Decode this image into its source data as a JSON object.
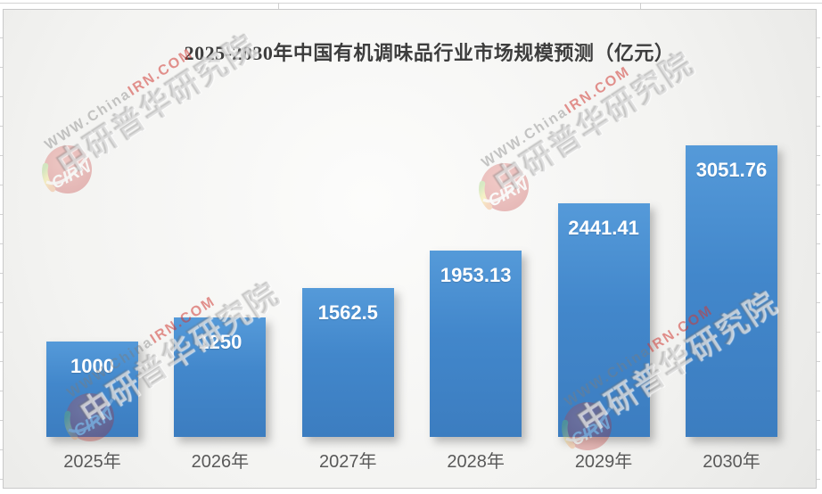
{
  "chart_data": {
    "type": "bar",
    "title": "2025-2030年中国有机调味品行业市场规模预测（亿元）",
    "unit": "亿元",
    "categories": [
      "2025年",
      "2026年",
      "2027年",
      "2028年",
      "2029年",
      "2030年"
    ],
    "values": [
      1000,
      1250,
      1562.5,
      1953.13,
      2441.41,
      3051.76
    ],
    "value_labels": [
      "1000",
      "1250",
      "1562.5",
      "1953.13",
      "2441.41",
      "3051.76"
    ],
    "xlabel": "",
    "ylabel": "",
    "ylim": [
      0,
      3200
    ],
    "grid": false,
    "legend": false,
    "bar_color_top": "#559ad9",
    "bar_color_bottom": "#3c7dc0",
    "value_label_color": "#ffffff",
    "category_label_color": "#595959",
    "title_color": "#3d3d3d"
  },
  "watermark": {
    "logo_text": "CIRN",
    "url_prefix": "WWW.China",
    "url_suffix": "IRN.COM",
    "org_name": "中研普华研究院",
    "logo_red": "#b51212",
    "accent_red": "#d03a34"
  }
}
